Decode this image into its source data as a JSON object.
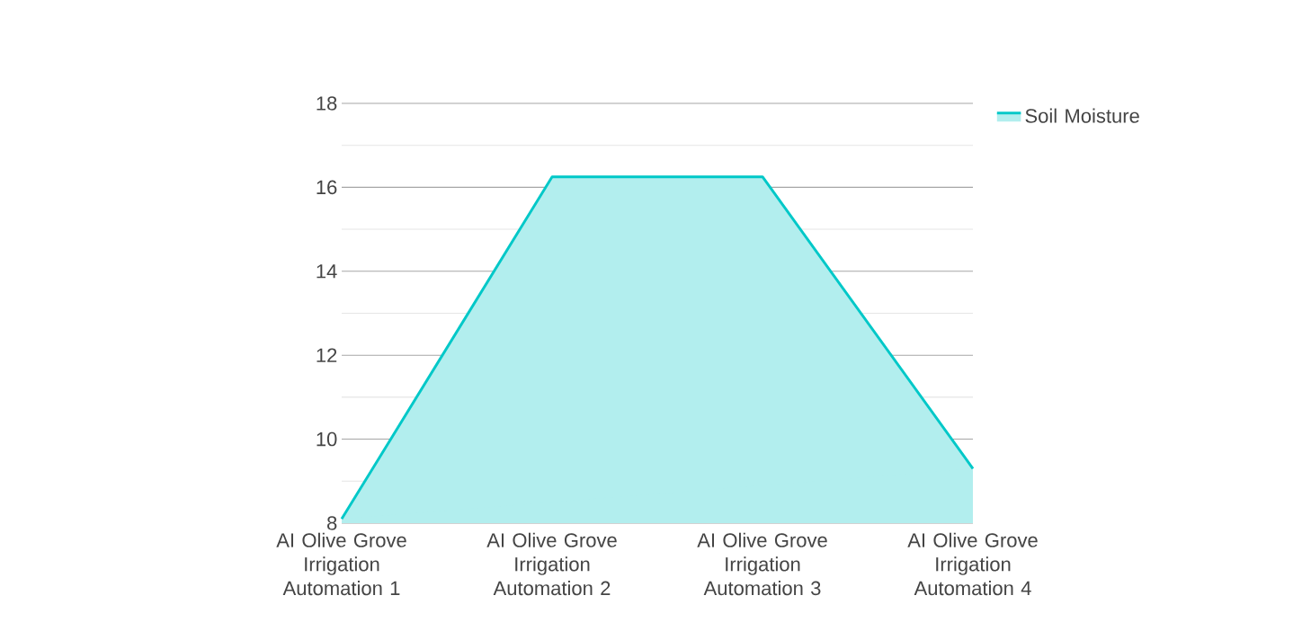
{
  "chart_data": {
    "type": "area",
    "categories": [
      "AI Olive Grove Irrigation Automation 1",
      "AI Olive Grove Irrigation Automation 2",
      "AI Olive Grove Irrigation Automation 3",
      "AI Olive Grove Irrigation Automation 4"
    ],
    "series": [
      {
        "name": "Soil Moisture",
        "color": "#00c8c8",
        "values": [
          8.1,
          16.25,
          16.25,
          9.3
        ]
      }
    ],
    "ylim": [
      8,
      18
    ],
    "yticks": [
      8,
      10,
      12,
      14,
      16,
      18
    ],
    "grid": "y",
    "legend": "top right",
    "marker": "none"
  }
}
